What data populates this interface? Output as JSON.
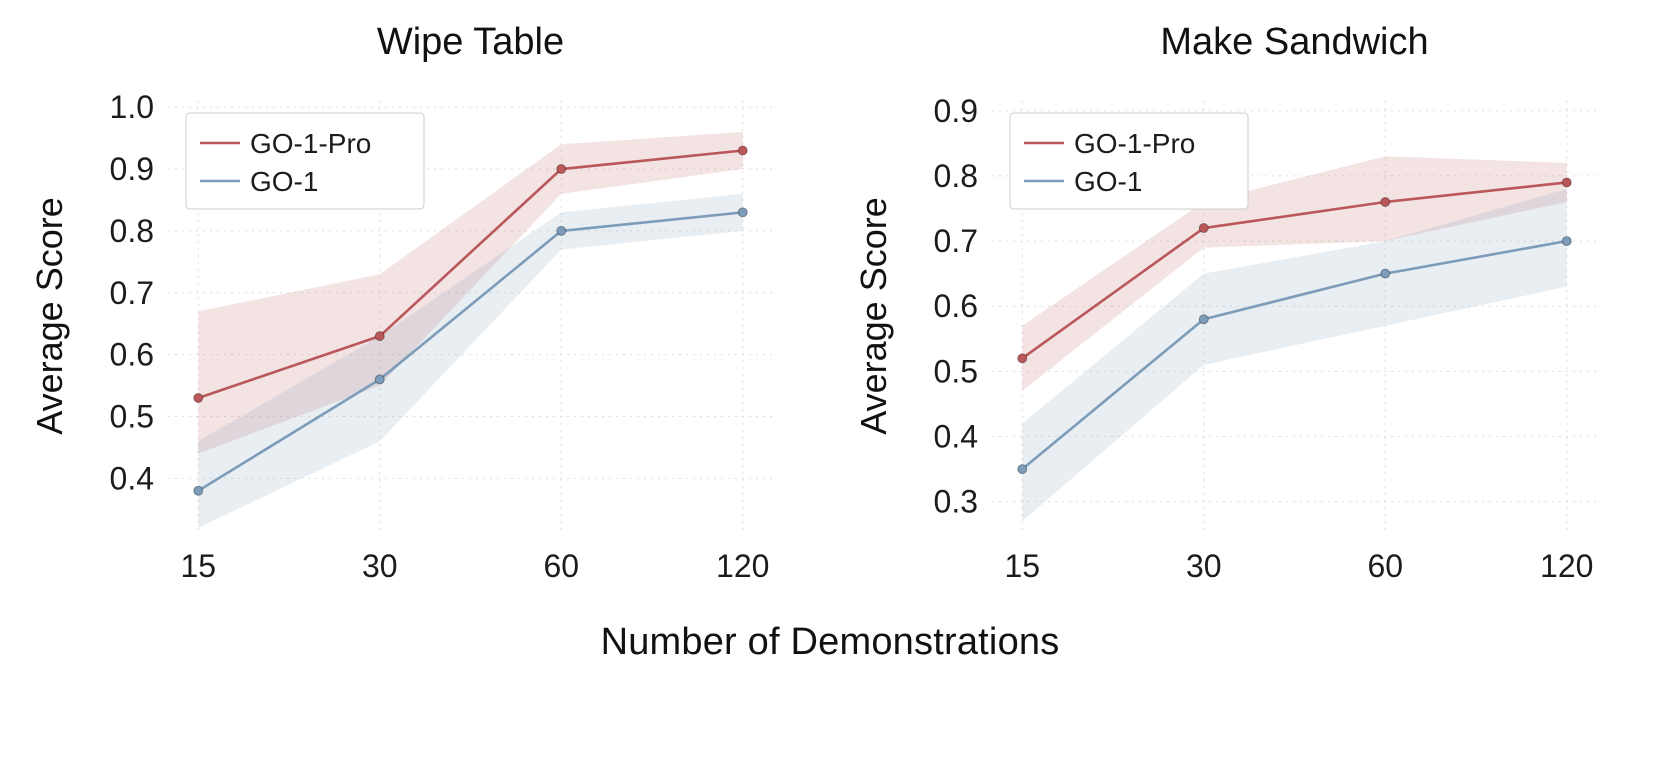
{
  "shared_xlabel": "Number of Demonstrations",
  "colors": {
    "go1pro_red": "#b9575a",
    "go1_blue": "#7d9cb9",
    "grid": "#dcdcdc",
    "text": "#111111"
  },
  "chart_data": [
    {
      "type": "line",
      "title": "Wipe Table",
      "ylabel": "Average Score",
      "xlabel": "",
      "x": [
        "15",
        "30",
        "60",
        "120"
      ],
      "yticks": [
        0.4,
        0.5,
        0.6,
        0.7,
        0.8,
        0.9,
        1.0
      ],
      "ylim": [
        0.315,
        1.01
      ],
      "grid": "dotted",
      "legend_position": "upper-left",
      "series": [
        {
          "name": "GO-1-Pro",
          "color": "#b9575a",
          "values": [
            0.53,
            0.63,
            0.9,
            0.93
          ],
          "lower": [
            0.44,
            0.55,
            0.86,
            0.9
          ],
          "upper": [
            0.67,
            0.73,
            0.94,
            0.96
          ]
        },
        {
          "name": "GO-1",
          "color": "#7d9cb9",
          "values": [
            0.38,
            0.56,
            0.8,
            0.83
          ],
          "lower": [
            0.32,
            0.46,
            0.77,
            0.8
          ],
          "upper": [
            0.46,
            0.63,
            0.83,
            0.86
          ]
        }
      ]
    },
    {
      "type": "line",
      "title": "Make Sandwich",
      "ylabel": "Average Score",
      "xlabel": "",
      "x": [
        "15",
        "30",
        "60",
        "120"
      ],
      "yticks": [
        0.3,
        0.4,
        0.5,
        0.6,
        0.7,
        0.8,
        0.9
      ],
      "ylim": [
        0.255,
        0.915
      ],
      "grid": "dotted",
      "legend_position": "upper-left",
      "series": [
        {
          "name": "GO-1-Pro",
          "color": "#b9575a",
          "values": [
            0.52,
            0.72,
            0.76,
            0.79
          ],
          "lower": [
            0.47,
            0.69,
            0.7,
            0.76
          ],
          "upper": [
            0.57,
            0.76,
            0.83,
            0.82
          ]
        },
        {
          "name": "GO-1",
          "color": "#7d9cb9",
          "values": [
            0.35,
            0.58,
            0.65,
            0.7
          ],
          "lower": [
            0.27,
            0.51,
            0.57,
            0.63
          ],
          "upper": [
            0.42,
            0.65,
            0.7,
            0.78
          ]
        }
      ]
    }
  ]
}
